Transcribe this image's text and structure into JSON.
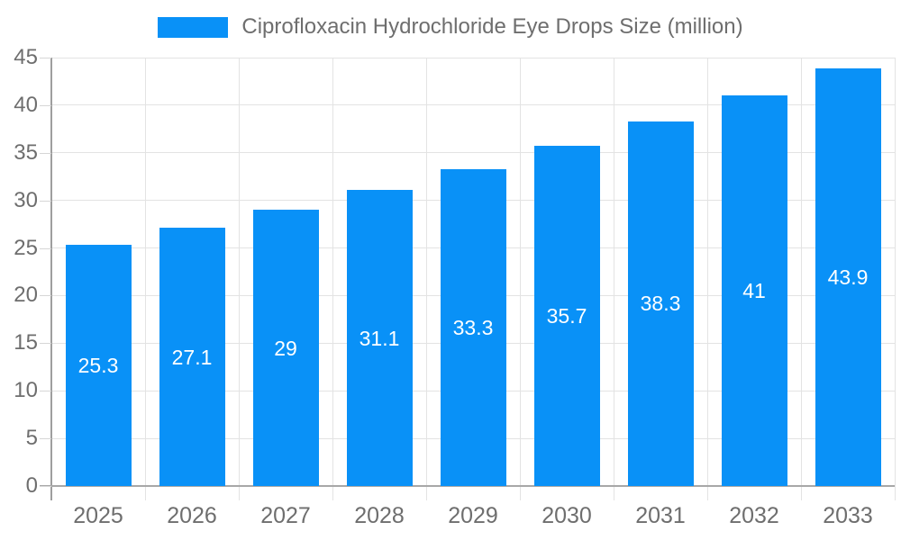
{
  "chart_data": {
    "type": "bar",
    "title": "Ciprofloxacin Hydrochloride Eye Drops Size (million)",
    "legend": "Ciprofloxacin Hydrochloride Eye Drops Size (million)",
    "legend_position": "top-center",
    "categories": [
      "2025",
      "2026",
      "2027",
      "2028",
      "2029",
      "2030",
      "2031",
      "2032",
      "2033"
    ],
    "values": [
      25.3,
      27.1,
      29,
      31.1,
      33.3,
      35.7,
      38.3,
      41,
      43.9
    ],
    "value_labels": [
      "25.3",
      "27.1",
      "29",
      "31.1",
      "33.3",
      "35.7",
      "38.3",
      "41",
      "43.9"
    ],
    "xlabel": "",
    "ylabel": "",
    "ylim": [
      0,
      45
    ],
    "ytick_step": 5,
    "yticks": [
      0,
      5,
      10,
      15,
      20,
      25,
      30,
      35,
      40,
      45
    ],
    "grid": "horizontal gridlines at each ytick; vertical gridlines at category boundaries",
    "colors": {
      "bar": "#0991f7",
      "grid": "#e3e3e3",
      "axis": "#9e9e9e",
      "tick_text": "#6e6e6e",
      "bar_label": "#ffffff"
    }
  }
}
